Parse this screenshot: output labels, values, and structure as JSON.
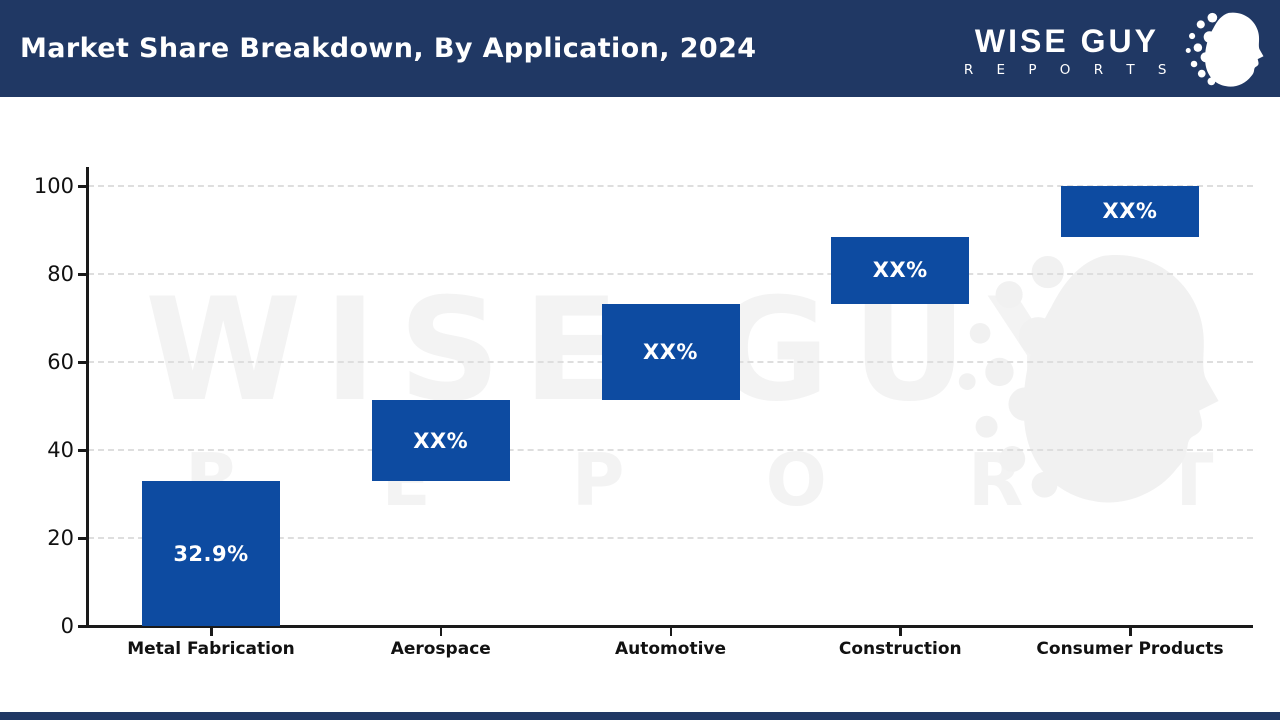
{
  "header": {
    "title": "Market Share Breakdown, By Application, 2024",
    "logo": {
      "primary": "WISE GUY",
      "secondary": "R E P O R T S"
    }
  },
  "watermark": {
    "line1": "WISE GUY",
    "line2": "R E P O R T S"
  },
  "colors": {
    "header_bg": "#203864",
    "footer_bg": "#203864",
    "bar": "#0d4ba1",
    "grid": "#dedede",
    "axis": "#1a1a1a"
  },
  "chart_data": {
    "type": "bar",
    "variant": "waterfall",
    "title": "Market Share Breakdown, By Application, 2024",
    "categories": [
      "Metal Fabrication",
      "Aerospace",
      "Automotive",
      "Construction",
      "Consumer Products"
    ],
    "segments": [
      {
        "category": "Metal Fabrication",
        "start": 0,
        "end": 32.9,
        "label": "32.9%"
      },
      {
        "category": "Aerospace",
        "start": 32.9,
        "end": 51.3,
        "label": "XX%"
      },
      {
        "category": "Automotive",
        "start": 51.3,
        "end": 73.2,
        "label": "XX%"
      },
      {
        "category": "Construction",
        "start": 73.2,
        "end": 88.5,
        "label": "XX%"
      },
      {
        "category": "Consumer Products",
        "start": 88.5,
        "end": 100,
        "label": "XX%"
      }
    ],
    "yticks": [
      0,
      20,
      40,
      60,
      80,
      100
    ],
    "ylim": [
      0,
      105
    ],
    "xlabel": "",
    "ylabel": "",
    "legend": null,
    "grid": {
      "horizontal": true,
      "style": "dashed"
    }
  }
}
